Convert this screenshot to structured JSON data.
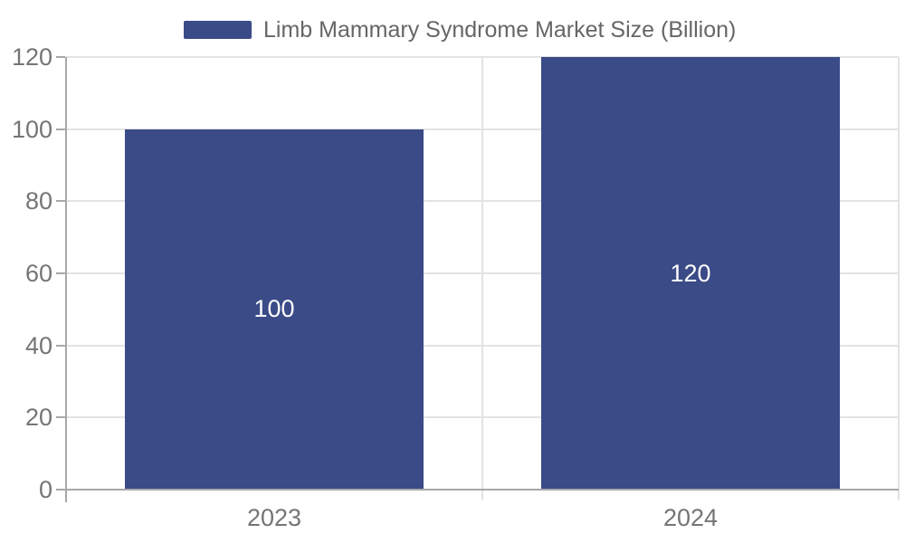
{
  "chart_data": {
    "type": "bar",
    "title": "",
    "legend": {
      "label": "Limb Mammary Syndrome Market Size (Billion)",
      "position": "top"
    },
    "categories": [
      "2023",
      "2024"
    ],
    "series": [
      {
        "name": "Limb Mammary Syndrome Market Size (Billion)",
        "values": [
          100,
          120
        ]
      }
    ],
    "ylim": [
      0,
      120
    ],
    "yticks": [
      0,
      20,
      40,
      60,
      80,
      100,
      120
    ],
    "grid": true,
    "bar_labels_inside": true,
    "colors": {
      "bar": "#3a4b87",
      "grid": "#e3e3e3",
      "axis": "#a8a8a8",
      "tick_text": "#757575",
      "legend_text": "#666666",
      "bar_label": "#ffffff",
      "background": "#ffffff"
    }
  }
}
